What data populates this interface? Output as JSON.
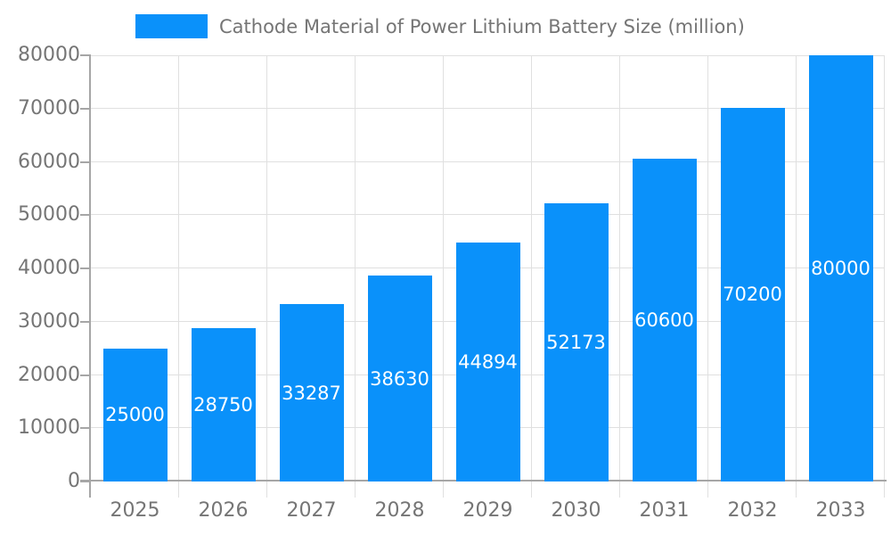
{
  "legend": {
    "label": "Cathode Material of Power Lithium Battery Size (million)"
  },
  "chart_data": {
    "type": "bar",
    "title": "",
    "series_name": "Cathode Material of Power Lithium Battery Size (million)",
    "categories": [
      "2025",
      "2026",
      "2027",
      "2028",
      "2029",
      "2030",
      "2031",
      "2032",
      "2033"
    ],
    "values": [
      25000,
      28750,
      33287,
      38630,
      44894,
      52173,
      60600,
      70200,
      80000
    ],
    "value_labels": [
      "25000",
      "28750",
      "33287",
      "38630",
      "44894",
      "52173",
      "60600",
      "70200",
      "80000"
    ],
    "xlabel": "",
    "ylabel": "",
    "ylim": [
      0,
      80000
    ],
    "yticks": [
      0,
      10000,
      20000,
      30000,
      40000,
      50000,
      60000,
      70000,
      80000
    ],
    "ytick_labels": [
      "0",
      "10000",
      "20000",
      "30000",
      "40000",
      "50000",
      "60000",
      "70000",
      "80000"
    ],
    "grid": true,
    "legend_position": "top",
    "colors": {
      "bar": "#0a91fa",
      "grid": "#e0e0e0",
      "axis": "#a6a6a6",
      "text": "#757575",
      "value_label": "#ffffff",
      "background": "#ffffff"
    }
  }
}
